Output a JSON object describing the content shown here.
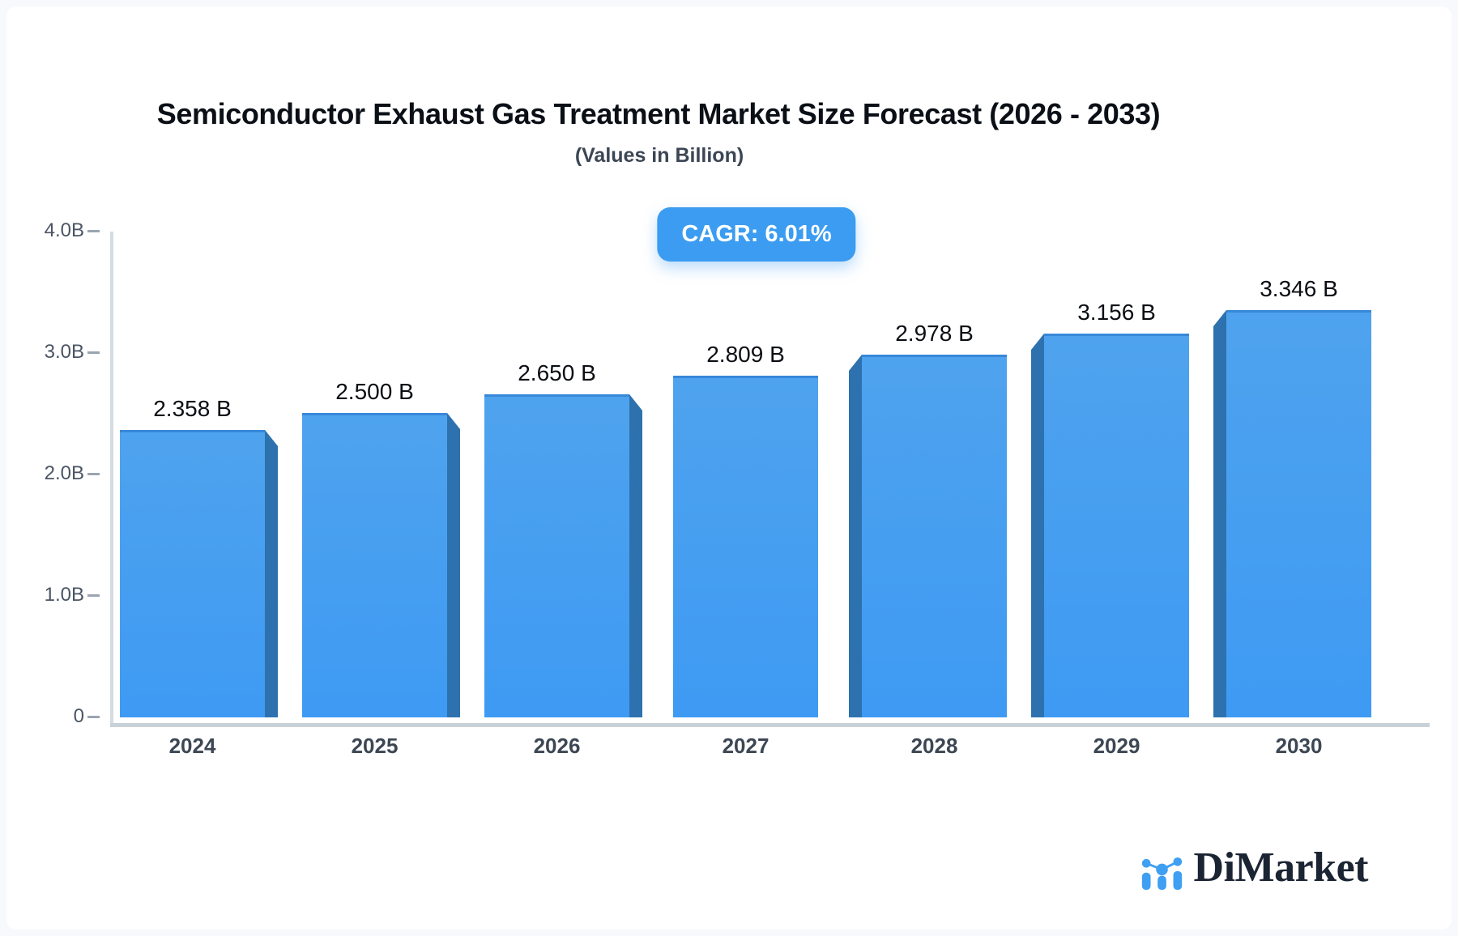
{
  "page": {
    "background": "#f7f9fc",
    "card_background": "#ffffff"
  },
  "header": {
    "title": "Semiconductor Exhaust Gas Treatment Market Size Forecast (2026 - 2033)",
    "subtitle": "(Values in Billion)"
  },
  "badge": {
    "label": "CAGR: 6.01%",
    "background": "#3b9cf1",
    "text_color": "#ffffff"
  },
  "chart_data": {
    "type": "bar",
    "title": "Semiconductor Exhaust Gas Treatment Market Size Forecast (2026 - 2033)",
    "subtitle": "(Values in Billion)",
    "categories": [
      "2024",
      "2025",
      "2026",
      "2027",
      "2028",
      "2029",
      "2030"
    ],
    "values": [
      2.358,
      2.5,
      2.65,
      2.809,
      2.978,
      3.156,
      3.346
    ],
    "value_labels": [
      "2.358 B",
      "2.500 B",
      "2.650 B",
      "2.809 B",
      "2.978 B",
      "3.156 B",
      "3.346 B"
    ],
    "xlabel": "",
    "ylabel": "",
    "ylim": [
      0,
      4.0
    ],
    "yticks": {
      "values": [
        0,
        1,
        2,
        3,
        4
      ],
      "labels": [
        "0",
        "1.0B",
        "2.0B",
        "3.0B",
        "4.0B"
      ]
    },
    "grid": false,
    "legend": false,
    "bar_face_color": "#3f9bf2",
    "bar_side_color": "#2d72ae",
    "style_note": "3d box bars; side face on right for bars left of center, on left for bars right of center, center bar flat"
  },
  "logo": {
    "text": "DiMarket",
    "icon": "mini-bar-chart-icon",
    "icon_color": "#3f9ff2",
    "text_color": "#1b2433"
  }
}
